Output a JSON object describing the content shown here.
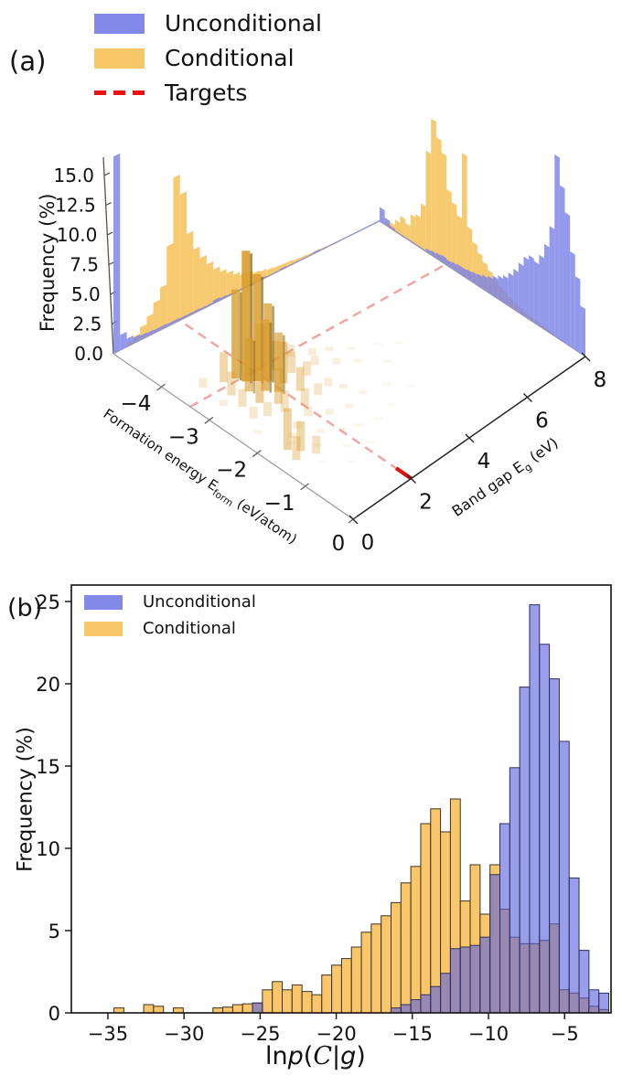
{
  "panel_a": {
    "label": "(a)",
    "legend": {
      "items": [
        {
          "label": "Unconditional",
          "color": "#8289e8",
          "type": "swatch"
        },
        {
          "label": "Conditional",
          "color": "#f8c767",
          "type": "swatch"
        },
        {
          "label": "Targets",
          "color": "#ee1111",
          "type": "dashed-line"
        }
      ]
    },
    "z_axis": {
      "label": "Frequency (%)",
      "tick_labels": [
        "0.0",
        "2.5",
        "5.0",
        "7.5",
        "10.0",
        "12.5",
        "15.0"
      ]
    },
    "formation_axis": {
      "label_pre": "Formation energy E",
      "label_sub": "form",
      "label_post": " (eV/atom)",
      "tick_labels": [
        "0",
        "-1",
        "-2",
        "-3",
        "-4"
      ]
    },
    "bandgap_axis": {
      "label_pre": "Band gap E",
      "label_sub": "g",
      "label_post": " (eV)",
      "tick_labels": [
        "0",
        "2",
        "4",
        "6",
        "8"
      ]
    }
  },
  "panel_b": {
    "label": "(b)",
    "legend": {
      "items": [
        {
          "label": "Unconditional",
          "color": "#8289e8"
        },
        {
          "label": "Conditional",
          "color": "#f8c767"
        }
      ]
    },
    "ylabel": "Frequency (%)",
    "xlabel_parts": {
      "ln": "ln",
      "p": "p",
      "open": "(",
      "script_c": "C",
      "bar": "|",
      "g": "g",
      "close": ")"
    }
  },
  "chart_data": [
    {
      "type": "3d-histogram",
      "panel": "a",
      "zlabel": "Frequency (%)",
      "xlabel": "Formation energy E_form (eV/atom)",
      "ylabel": "Band gap E_g (eV)",
      "zticks": [
        0,
        2.5,
        5,
        7.5,
        10,
        12.5,
        15
      ],
      "formation_ticks": [
        0,
        -1,
        -2,
        -3,
        -4
      ],
      "bandgap_ticks": [
        0,
        2,
        4,
        6,
        8
      ],
      "formation_range": [
        -5,
        0
      ],
      "bandgap_range": [
        0,
        8
      ],
      "legend": [
        "Unconditional",
        "Conditional",
        "Targets"
      ],
      "targets": {
        "band_gap_eV": 2,
        "formation_energy_eV_per_atom": -3.4
      },
      "colors": {
        "unconditional": "#7b82e6",
        "conditional": "#f7c564",
        "target": "#e84545",
        "floor_bar": "#d99d2e"
      },
      "bandgap_marginal": {
        "bin_start": 0,
        "bin_width": 0.2,
        "series": [
          {
            "name": "Conditional",
            "values": [
              0,
              0,
              0.3,
              0.6,
              1.1,
              1.7,
              2.6,
              3.6,
              6.8,
              12.3,
              10.6,
              7.0,
              5.4,
              4.4,
              3.6,
              2.9,
              2.4,
              2.0,
              1.6,
              1.3,
              1.1,
              0.9,
              0.75,
              0.6,
              0.5,
              0.45,
              0.4,
              0.3,
              0.25,
              0.2,
              0.2,
              0.15,
              0.1,
              0.1,
              0.05,
              0.05,
              0,
              0,
              0,
              0
            ]
          },
          {
            "name": "Unconditional",
            "values": [
              16.6,
              1.3,
              0.7,
              0.5,
              0.4,
              0.35,
              0.3,
              0.3,
              0.25,
              0.25,
              0.2,
              0.2,
              0.2,
              0.15,
              0.15,
              0.3,
              0.2,
              0.15,
              0.1,
              0.15,
              0.1,
              0.1,
              0.15,
              0.1,
              0.1,
              0.15,
              0.1,
              0.1,
              0.1,
              0.1,
              0.15,
              0.1,
              0.1,
              0.1,
              0.1,
              0.1,
              0.1,
              0.1,
              0.1,
              0.1
            ]
          }
        ]
      },
      "formation_marginal": {
        "bin_start": -5,
        "bin_width": 0.125,
        "series": [
          {
            "name": "Conditional",
            "values": [
              0,
              0.3,
              0.5,
              1.0,
              1.6,
              1.3,
              2.3,
              2.6,
              3.8,
              8.5,
              11.5,
              10.2,
              9.2,
              6.4,
              5.6,
              4.8,
              10.3,
              4.4,
              3.4,
              2.8,
              2.3,
              1.9,
              1.5,
              1.2,
              1.0,
              0.8,
              0.6,
              0.5,
              0.4,
              0.35,
              0.3,
              0.25,
              0.2,
              0.15,
              0.1,
              0.1,
              0.05,
              0.05,
              0,
              0
            ]
          },
          {
            "name": "Unconditional",
            "values": [
              1.2,
              0.6,
              0.2,
              0.1,
              0.1,
              0.1,
              0.1,
              0.1,
              0.1,
              0.3,
              0.4,
              0.5,
              0.6,
              0.5,
              0.6,
              0.7,
              0.7,
              0.8,
              0.9,
              1.0,
              1.2,
              1.4,
              1.7,
              2.0,
              2.3,
              2.8,
              3.4,
              4.2,
              5.0,
              5.4,
              5.2,
              6.0,
              7.2,
              9.0,
              15.3,
              13.0,
              11.0,
              8.0,
              6.2,
              4.0
            ]
          }
        ]
      },
      "floor_bars": {
        "columns": [
          "band_gap_eV",
          "formation_energy_eV_per_atom",
          "frequency_pct",
          "opacity"
        ],
        "rows": [
          [
            1.6,
            -3.3,
            11,
            0.9
          ],
          [
            1.8,
            -3.2,
            9,
            0.85
          ],
          [
            1.5,
            -3.45,
            7.5,
            0.8
          ],
          [
            2.0,
            -3.1,
            6.5,
            0.75
          ],
          [
            1.7,
            -2.95,
            6,
            0.7
          ],
          [
            1.9,
            -2.8,
            5,
            0.65
          ],
          [
            1.4,
            -3.1,
            4.5,
            0.6
          ],
          [
            2.1,
            -3.35,
            4,
            0.55
          ],
          [
            2.2,
            -2.9,
            3.5,
            0.5
          ],
          [
            1.3,
            -2.8,
            3,
            0.5
          ],
          [
            1.6,
            -2.6,
            3,
            0.45
          ],
          [
            2.4,
            -3.2,
            2.5,
            0.45
          ],
          [
            1.2,
            -3.5,
            2.5,
            0.4
          ],
          [
            2.3,
            -2.6,
            2,
            0.4
          ],
          [
            1.0,
            -3.2,
            2,
            0.35
          ],
          [
            2.6,
            -3.0,
            1.8,
            0.35
          ],
          [
            1.5,
            -2.4,
            1.8,
            0.3
          ],
          [
            0.9,
            -2.9,
            1.5,
            0.3
          ],
          [
            2.0,
            -2.3,
            1.5,
            0.3
          ],
          [
            2.8,
            -2.8,
            1.2,
            0.28
          ],
          [
            1.1,
            -2.5,
            1.2,
            0.25
          ],
          [
            2.5,
            -2.35,
            1,
            0.25
          ],
          [
            0.8,
            -2.6,
            1,
            0.22
          ],
          [
            3.0,
            -3.3,
            1,
            0.22
          ],
          [
            3.2,
            -2.9,
            0.8,
            0.2
          ],
          [
            0.7,
            -3.6,
            0.8,
            0.2
          ],
          [
            1.8,
            -2.1,
            0.8,
            0.2
          ],
          [
            2.9,
            -2.4,
            0.7,
            0.18
          ],
          [
            3.4,
            -3.1,
            0.6,
            0.18
          ],
          [
            1.3,
            -2.0,
            0.6,
            0.18
          ],
          [
            0.6,
            -1.75,
            3.5,
            0.45
          ],
          [
            0.8,
            -1.6,
            2.5,
            0.4
          ],
          [
            0.5,
            -1.5,
            2,
            0.35
          ],
          [
            1.0,
            -1.4,
            1.5,
            0.3
          ],
          [
            2.2,
            -1.9,
            0.5,
            0.16
          ],
          [
            3.6,
            -2.7,
            0.5,
            0.16
          ],
          [
            0.6,
            -3.1,
            0.5,
            0.16
          ],
          [
            3.1,
            -2.2,
            0.4,
            0.15
          ],
          [
            1.0,
            -1.9,
            0.4,
            0.14
          ],
          [
            2.7,
            -1.8,
            0.4,
            0.14
          ],
          [
            3.8,
            -3.0,
            0.4,
            0.14
          ],
          [
            4.0,
            -2.5,
            0.3,
            0.12
          ],
          [
            1.6,
            -1.7,
            0.3,
            0.12
          ],
          [
            0.5,
            -2.3,
            0.3,
            0.12
          ],
          [
            3.3,
            -1.9,
            0.3,
            0.12
          ],
          [
            2.0,
            -1.5,
            0.3,
            0.12
          ],
          [
            4.2,
            -2.8,
            0.25,
            0.1
          ],
          [
            2.4,
            -1.4,
            0.25,
            0.1
          ],
          [
            1.2,
            -1.5,
            0.25,
            0.1
          ],
          [
            4.5,
            -2.2,
            0.2,
            0.1
          ],
          [
            3.9,
            -1.8,
            0.2,
            0.09
          ],
          [
            0.8,
            -1.8,
            0.2,
            0.09
          ],
          [
            2.9,
            -1.3,
            0.2,
            0.09
          ],
          [
            1.7,
            -1.2,
            0.2,
            0.09
          ],
          [
            4.8,
            -2.6,
            0.15,
            0.08
          ],
          [
            3.5,
            -1.4,
            0.15,
            0.08
          ],
          [
            2.2,
            -1.0,
            0.15,
            0.08
          ],
          [
            1.4,
            -0.9,
            0.15,
            0.08
          ],
          [
            4.3,
            -1.5,
            0.15,
            0.08
          ],
          [
            5.2,
            -2.4,
            0.1,
            0.07
          ],
          [
            0.9,
            -1.2,
            0.1,
            0.07
          ]
        ]
      }
    },
    {
      "type": "histogram",
      "panel": "b",
      "xlabel": "ln p(C|g)",
      "ylabel": "Frequency (%)",
      "xlim": [
        -37.4,
        -1.95
      ],
      "ylim": [
        0,
        26
      ],
      "xticks": [
        -35,
        -30,
        -25,
        -20,
        -15,
        -10,
        -5
      ],
      "yticks": [
        0,
        5,
        10,
        15,
        20,
        25
      ],
      "bin_start": -34.6,
      "bin_width": 0.65,
      "series": [
        {
          "name": "Conditional",
          "color": "#f9c76a",
          "edge": "#3a3326",
          "opacity": 1,
          "values": [
            0.3,
            0,
            0,
            0.5,
            0.4,
            0,
            0.3,
            0,
            0,
            0,
            0.3,
            0.35,
            0.5,
            0.55,
            0.6,
            1.4,
            1.9,
            1.4,
            1.7,
            1.3,
            1.1,
            2.3,
            2.9,
            3.3,
            4.0,
            4.9,
            5.4,
            5.9,
            6.7,
            7.9,
            8.9,
            11.5,
            12.4,
            11.0,
            13.0,
            6.8,
            9.0,
            6.0,
            9.0,
            6.3,
            4.6,
            4.2,
            4.2,
            4.4,
            5.4,
            1.4,
            1.2,
            0.9,
            0.4,
            0.2
          ]
        },
        {
          "name": "Unconditional",
          "color": "#5a63dd",
          "edge": "#2e2e5e",
          "opacity": 0.62,
          "values": [
            0,
            0,
            0,
            0,
            0,
            0,
            0,
            0,
            0,
            0,
            0,
            0,
            0,
            0,
            0.6,
            0,
            0,
            0,
            0,
            0,
            0,
            0,
            0,
            0,
            0,
            0,
            0,
            0,
            0.3,
            0.5,
            0.8,
            1.1,
            1.6,
            2.4,
            3.9,
            4.0,
            4.1,
            4.6,
            8.4,
            11.5,
            14.9,
            19.8,
            24.8,
            22.4,
            20.3,
            16.5,
            8.2,
            3.8,
            1.4,
            1.2
          ]
        }
      ]
    }
  ]
}
